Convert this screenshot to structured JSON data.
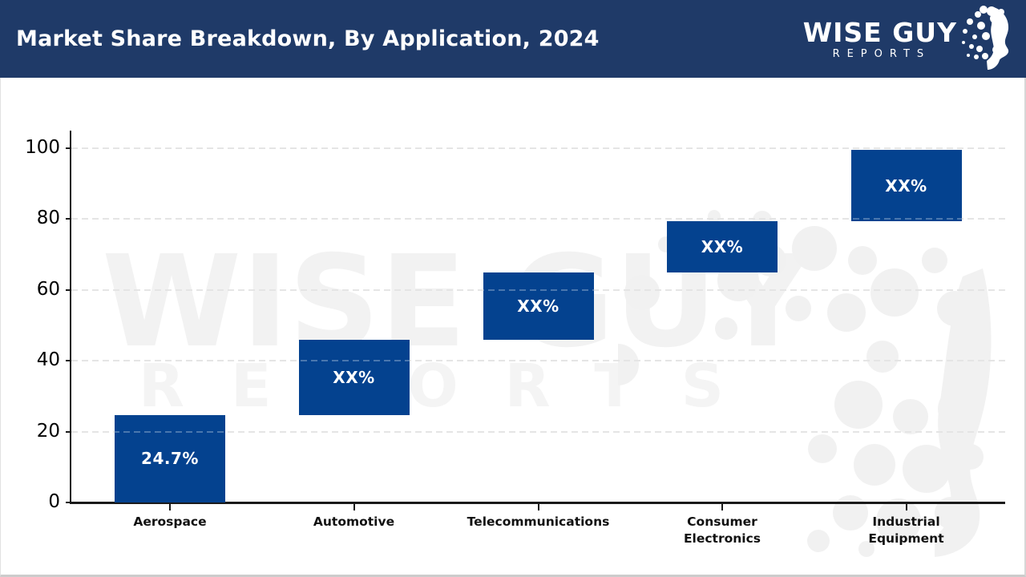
{
  "header": {
    "title": "Market Share Breakdown, By Application, 2024",
    "brand": {
      "name": "WISE GUY",
      "subtitle": "REPORTS"
    }
  },
  "watermark": {
    "line1": "WISE GUY",
    "line2": "REPORTS"
  },
  "colors": {
    "header_bg": "#1f3a68",
    "bar": "#04428f",
    "grid": "#dbdbdb",
    "axis": "#1a1a1a",
    "watermark": "#f2f2f2"
  },
  "chart_data": {
    "type": "bar",
    "subtype": "waterfall",
    "title": "Market Share Breakdown, By Application, 2024",
    "categories": [
      "Aerospace",
      "Automotive",
      "Telecommunications",
      "Consumer Electronics",
      "Industrial Equipment"
    ],
    "categories_lines": [
      [
        "Aerospace"
      ],
      [
        "Automotive"
      ],
      [
        "Telecommunications"
      ],
      [
        "Consumer",
        "Electronics"
      ],
      [
        "Industrial",
        "Equipment"
      ]
    ],
    "segments": [
      {
        "category": "Aerospace",
        "start": 0,
        "end": 24.7,
        "label": "24.7%"
      },
      {
        "category": "Automotive",
        "start": 24.7,
        "end": 45.9,
        "label": "XX%"
      },
      {
        "category": "Telecommunications",
        "start": 45.9,
        "end": 64.9,
        "label": "XX%"
      },
      {
        "category": "Consumer Electronics",
        "start": 64.9,
        "end": 79.3,
        "label": "XX%"
      },
      {
        "category": "Industrial Equipment",
        "start": 79.3,
        "end": 99.4,
        "label": "XX%"
      }
    ],
    "yticks": [
      0,
      20,
      40,
      60,
      80,
      100
    ],
    "ylim": [
      0,
      105
    ],
    "xlabel": "",
    "ylabel": "",
    "grid": "horizontal dashed",
    "legend": "none",
    "bar_color": "#04428f"
  }
}
